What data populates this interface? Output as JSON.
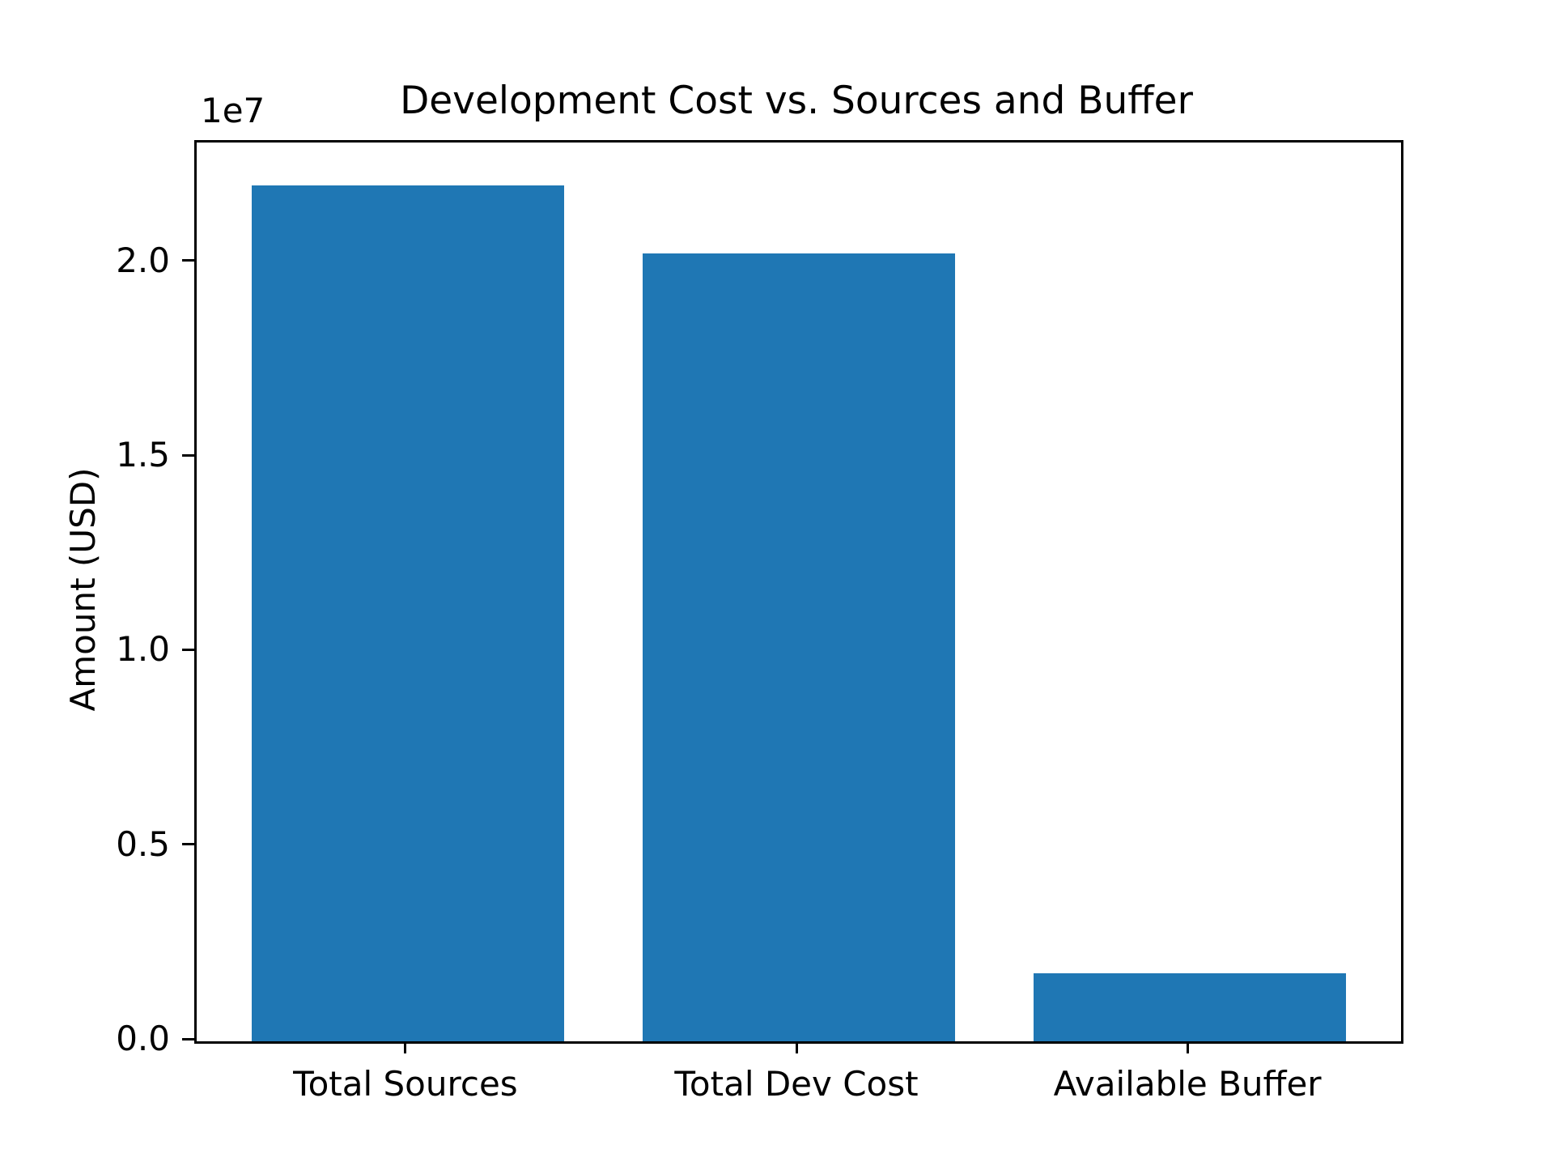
{
  "chart_data": {
    "type": "bar",
    "title": "Development Cost vs. Sources and Buffer",
    "ylabel": "Amount (USD)",
    "xlabel": "",
    "offset_text": "1e7",
    "categories": [
      "Total Sources",
      "Total Dev Cost",
      "Available Buffer"
    ],
    "values": [
      22000000,
      20250000,
      1750000
    ],
    "ylim": [
      0,
      23100000
    ],
    "xlim": [
      -0.54,
      2.54
    ],
    "yticks": [
      0,
      5000000,
      10000000,
      15000000,
      20000000
    ],
    "ytick_labels": [
      "0.0",
      "0.5",
      "1.0",
      "1.5",
      "2.0"
    ],
    "bar_width": 0.8,
    "bar_color": "#1f77b4",
    "text_color": "#000000",
    "grid": false,
    "legend": null
  }
}
